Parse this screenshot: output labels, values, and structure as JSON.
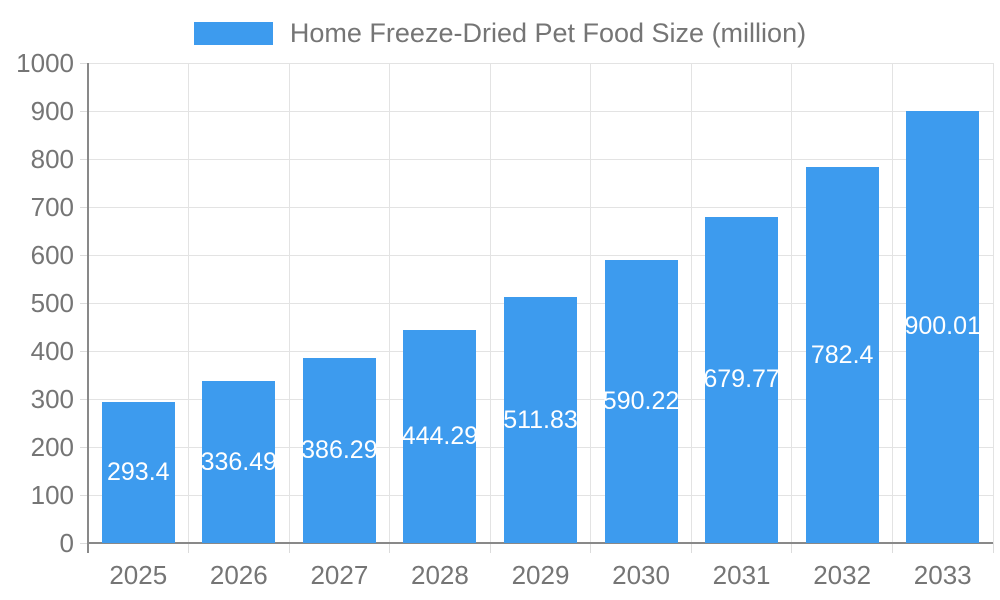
{
  "legend": {
    "label": "Home Freeze-Dried Pet Food Size (million)"
  },
  "chart_data": {
    "type": "bar",
    "title": "Home Freeze-Dried Pet Food Size (million)",
    "categories": [
      "2025",
      "2026",
      "2027",
      "2028",
      "2029",
      "2030",
      "2031",
      "2032",
      "2033"
    ],
    "values": [
      293.4,
      336.49,
      386.29,
      444.29,
      511.83,
      590.22,
      679.77,
      782.4,
      900.01
    ],
    "value_labels": [
      "293.4",
      "336.49",
      "386.29",
      "444.29",
      "511.83",
      "590.22",
      "679.77",
      "782.4",
      "900.01"
    ],
    "xlabel": "",
    "ylabel": "",
    "ylim": [
      0,
      1000
    ],
    "ytick_labels": [
      "0",
      "100",
      "200",
      "300",
      "400",
      "500",
      "600",
      "700",
      "800",
      "900",
      "1000"
    ],
    "grid": true,
    "legend_position": "top-center",
    "bar_color": "#3d9bee",
    "value_label_color": "#ffffff",
    "grid_color": "#e3e3e3",
    "axis_color": "#898989",
    "text_color": "#757575"
  }
}
